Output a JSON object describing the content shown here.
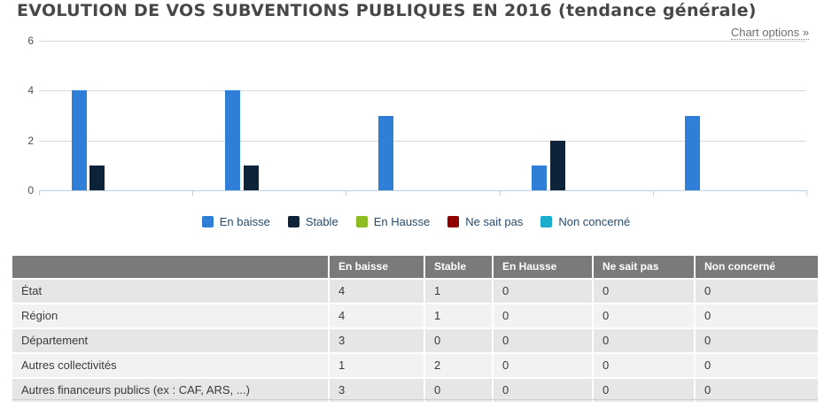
{
  "header": {
    "title": "EVOLUTION DE VOS SUBVENTIONS PUBLIQUES EN 2016 (tendance générale)",
    "chart_options_label": "Chart options »"
  },
  "chart_data": {
    "type": "bar",
    "title": "EVOLUTION DE VOS SUBVENTIONS PUBLIQUES EN 2016 (tendance générale)",
    "categories": [
      "État",
      "Région",
      "Département",
      "Autres collectivités",
      "Autres financeurs publics (ex : CAF, ARS, ...)"
    ],
    "series": [
      {
        "name": "En baisse",
        "color": "#2f7ed8",
        "values": [
          4,
          4,
          3,
          1,
          3
        ]
      },
      {
        "name": "Stable",
        "color": "#0d233a",
        "values": [
          1,
          1,
          0,
          2,
          0
        ]
      },
      {
        "name": "En Hausse",
        "color": "#8bbc21",
        "values": [
          0,
          0,
          0,
          0,
          0
        ]
      },
      {
        "name": "Ne sait pas",
        "color": "#910000",
        "values": [
          0,
          0,
          0,
          0,
          0
        ]
      },
      {
        "name": "Non concerné",
        "color": "#1aadce",
        "values": [
          0,
          0,
          0,
          0,
          0
        ]
      }
    ],
    "xlabel": "",
    "ylabel": "",
    "ylim": [
      0,
      6
    ],
    "yticks": [
      0,
      2,
      4,
      6
    ],
    "grid": true,
    "x_tick_labels": "hidden",
    "legend_position": "bottom"
  },
  "table": {
    "headers": [
      "",
      "En baisse",
      "Stable",
      "En Hausse",
      "Ne sait pas",
      "Non concerné"
    ],
    "rows": [
      {
        "label": "État",
        "values": [
          "4",
          "1",
          "0",
          "0",
          "0"
        ]
      },
      {
        "label": "Région",
        "values": [
          "4",
          "1",
          "0",
          "0",
          "0"
        ]
      },
      {
        "label": "Département",
        "values": [
          "3",
          "0",
          "0",
          "0",
          "0"
        ]
      },
      {
        "label": "Autres collectivités",
        "values": [
          "1",
          "2",
          "0",
          "0",
          "0"
        ]
      },
      {
        "label": "Autres financeurs publics (ex : CAF, ARS, ...)",
        "values": [
          "3",
          "0",
          "0",
          "0",
          "0"
        ]
      }
    ]
  },
  "colors": {
    "title_text": "#474747",
    "link_text": "#6d6d6d",
    "axis_label": "#4f4f4f",
    "legend_text": "#274b6d",
    "gridline": "#d8d8d8",
    "axis_line": "#c0d0e0",
    "table_header_bg": "#7a7a7a",
    "table_header_text": "#ffffff",
    "row_odd_bg": "#e6e6e6",
    "row_even_bg": "#f2f2f2",
    "table_text": "#3a3a3a"
  }
}
